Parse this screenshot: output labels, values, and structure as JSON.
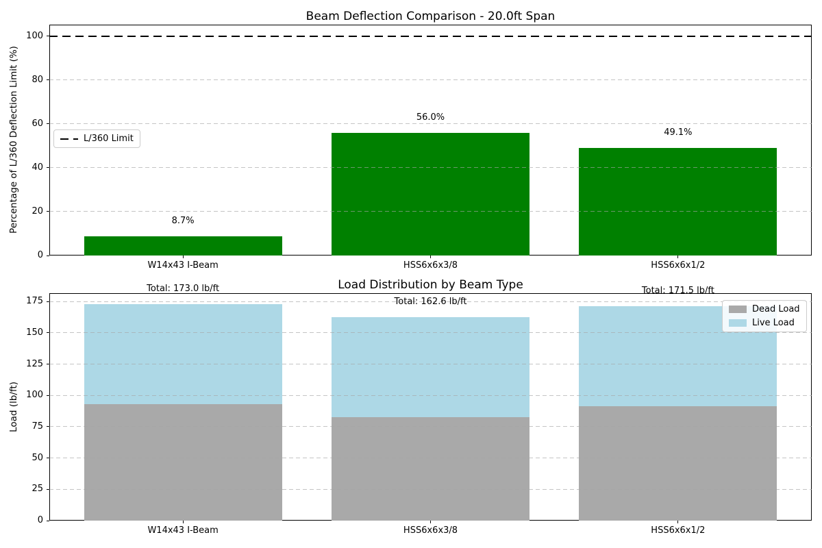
{
  "figure": {
    "background": "#ffffff"
  },
  "chart_data": [
    {
      "type": "bar",
      "title": "Beam Deflection Comparison - 20.0ft Span",
      "xlabel": "",
      "ylabel": "Percentage of L/360 Deflection Limit (%)",
      "categories": [
        "W14x43 I-Beam",
        "HSS6x6x3/8",
        "HSS6x6x1/2"
      ],
      "values": [
        8.7,
        56.0,
        49.1
      ],
      "bar_labels": [
        "8.7%",
        "56.0%",
        "49.1%"
      ],
      "bar_color": "#008000",
      "yticks": [
        0,
        20,
        40,
        60,
        80,
        100
      ],
      "ylim": [
        0,
        105.3
      ],
      "grid": true,
      "grid_axis": "y",
      "reference_line": {
        "value": 100,
        "label": "L/360 Limit",
        "color": "#000000",
        "style": "dashed"
      },
      "legend": {
        "position": "center-left",
        "entries": [
          {
            "label": "L/360 Limit",
            "type": "dashed-line",
            "color": "#000000"
          }
        ]
      }
    },
    {
      "type": "bar-stacked",
      "title": "Load Distribution by Beam Type",
      "xlabel": "",
      "ylabel": "Load (lb/ft)",
      "categories": [
        "W14x43 I-Beam",
        "HSS6x6x3/8",
        "HSS6x6x1/2"
      ],
      "series": [
        {
          "name": "Dead Load",
          "color": "#a9a9a9",
          "values": [
            93.0,
            82.6,
            91.5
          ]
        },
        {
          "name": "Live Load",
          "color": "#add8e6",
          "values": [
            80.0,
            80.0,
            80.0
          ]
        }
      ],
      "totals": [
        173.0,
        162.6,
        171.5
      ],
      "total_labels": [
        "Total: 173.0 lb/ft",
        "Total: 162.6 lb/ft",
        "Total: 171.5 lb/ft"
      ],
      "yticks": [
        0,
        25,
        50,
        75,
        100,
        125,
        150,
        175
      ],
      "ylim": [
        0,
        181.7
      ],
      "grid": true,
      "grid_axis": "y",
      "legend": {
        "position": "top-right",
        "entries": [
          {
            "label": "Dead Load",
            "type": "patch",
            "color": "#a9a9a9"
          },
          {
            "label": "Live Load",
            "type": "patch",
            "color": "#add8e6"
          }
        ]
      }
    }
  ]
}
